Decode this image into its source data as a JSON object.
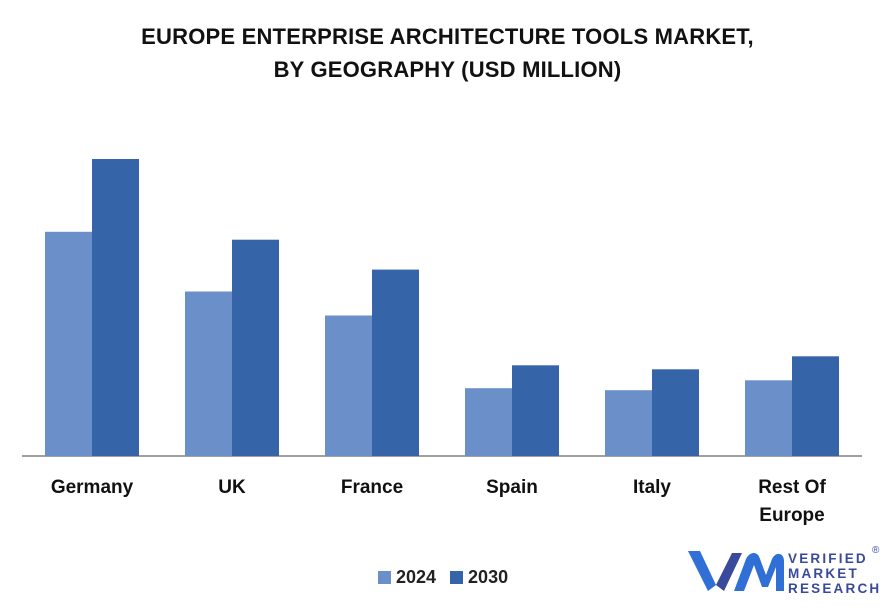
{
  "title_lines": [
    "EUROPE ENTERPRISE ARCHITECTURE TOOLS MARKET,",
    "BY GEOGRAPHY (USD MILLION)"
  ],
  "colors": {
    "s2024": "#6a8fc9",
    "s2030": "#3565a8",
    "axis": "#808080"
  },
  "chart_data": {
    "type": "bar",
    "title": "EUROPE ENTERPRISE ARCHITECTURE TOOLS MARKET, BY GEOGRAPHY (USD MILLION)",
    "categories": [
      [
        "Germany"
      ],
      [
        "UK"
      ],
      [
        "France"
      ],
      [
        "Spain"
      ],
      [
        "Italy"
      ],
      [
        "Rest Of",
        "Europe"
      ]
    ],
    "series": [
      {
        "name": "2024",
        "values": [
          225,
          165,
          141,
          68,
          66,
          76
        ]
      },
      {
        "name": "2030",
        "values": [
          298,
          217,
          187,
          91,
          87,
          100
        ]
      }
    ],
    "ylim": [
      0,
      300
    ],
    "grid": false,
    "legend": "bottom"
  },
  "logo": {
    "lines": [
      "VERIFIED",
      "MARKET",
      "RESEARCH"
    ],
    "reg": "®"
  }
}
